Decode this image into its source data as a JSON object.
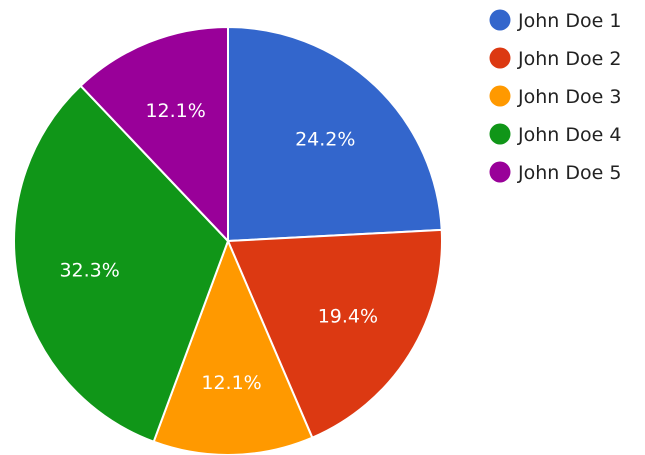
{
  "chart_data": {
    "type": "pie",
    "title": "",
    "legend_position": "right",
    "slices": [
      {
        "label": "John Doe 1",
        "value": 24.2,
        "display": "24.2%",
        "color": "#3366cc"
      },
      {
        "label": "John Doe 2",
        "value": 19.4,
        "display": "19.4%",
        "color": "#dc3912"
      },
      {
        "label": "John Doe 3",
        "value": 12.1,
        "display": "12.1%",
        "color": "#ff9900"
      },
      {
        "label": "John Doe 4",
        "value": 32.3,
        "display": "32.3%",
        "color": "#109618"
      },
      {
        "label": "John Doe 5",
        "value": 12.1,
        "display": "12.1%",
        "color": "#990099"
      }
    ]
  }
}
